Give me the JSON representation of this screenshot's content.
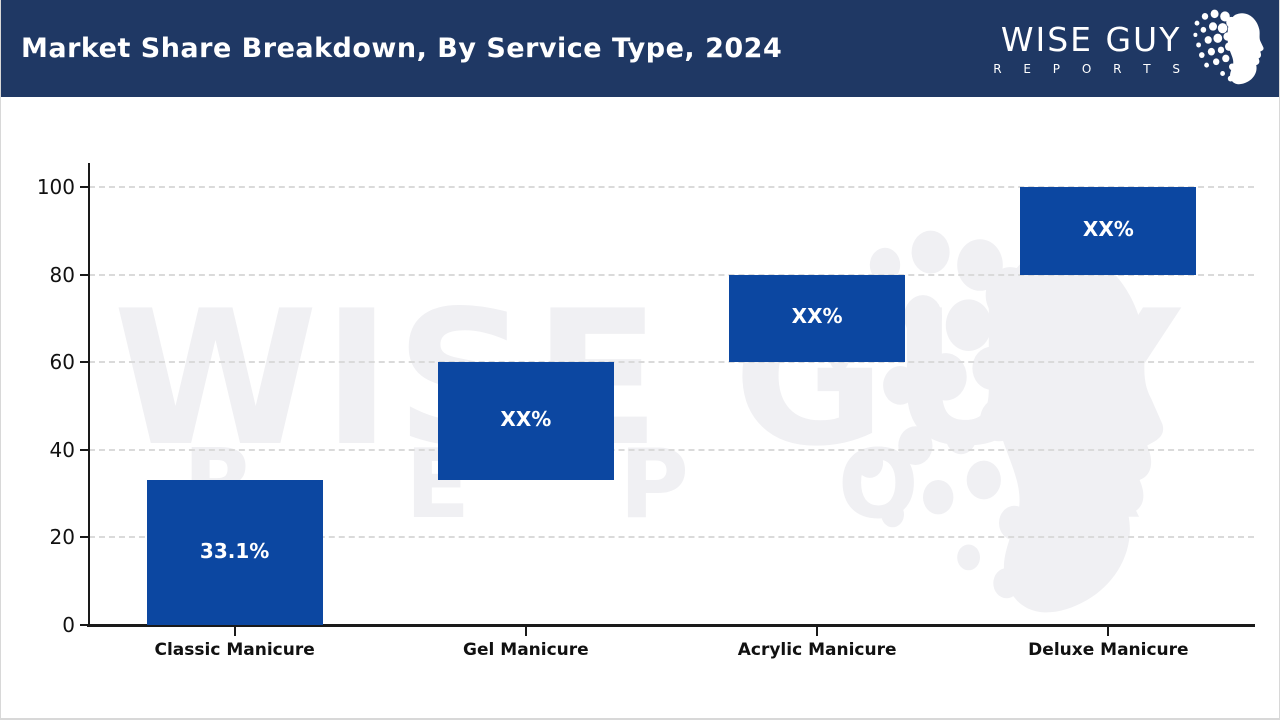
{
  "header": {
    "title": "Market Share Breakdown, By Service Type, 2024",
    "logo": {
      "name": "Wise Guy Reports",
      "line1": "WISE GUY",
      "line2": "R E P O R T S"
    }
  },
  "watermark": {
    "line1": "WISE GUY",
    "line2": "R E P O R T S"
  },
  "colors": {
    "header_bg": "#1F3864",
    "bar": "#0C47A1",
    "grid": "#DADADA",
    "axis": "#1A1A1A",
    "tick_label": "#111111",
    "bar_label": "#FFFFFF",
    "watermark": "#F0F0F3",
    "frame_border": "#D8D8D8"
  },
  "chart_data": {
    "type": "bar",
    "subtype": "waterfall",
    "title": "Market Share Breakdown, By Service Type, 2024",
    "categories": [
      "Classic Manicure",
      "Gel Manicure",
      "Acrylic Manicure",
      "Deluxe Manicure"
    ],
    "segments": [
      {
        "category": "Classic Manicure",
        "start": 0,
        "end": 33.1,
        "label": "33.1%"
      },
      {
        "category": "Gel Manicure",
        "start": 33.1,
        "end": 60,
        "label": "XX%"
      },
      {
        "category": "Acrylic Manicure",
        "start": 60,
        "end": 80,
        "label": "XX%"
      },
      {
        "category": "Deluxe Manicure",
        "start": 80,
        "end": 100,
        "label": "XX%"
      }
    ],
    "bar_labels": [
      "33.1%",
      "XX%",
      "XX%",
      "XX%"
    ],
    "xlabel": "",
    "ylabel": "",
    "yticks": [
      0,
      20,
      40,
      60,
      80,
      100
    ],
    "ylim": [
      0,
      105
    ],
    "grid": true,
    "grid_style": "dashed horizontal",
    "legend": false
  }
}
